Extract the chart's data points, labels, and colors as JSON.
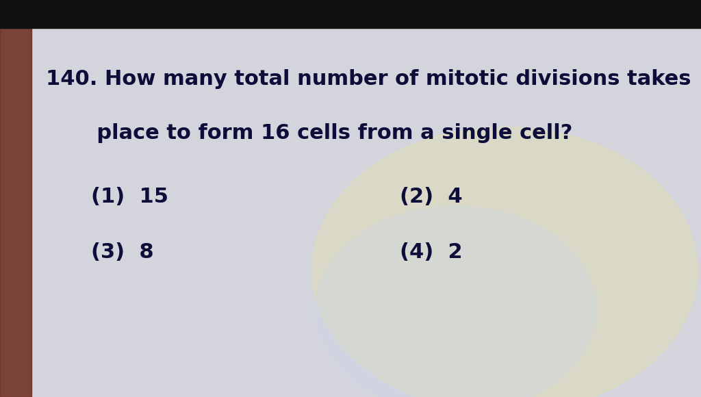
{
  "question_line1": "140. How many total number of mitotic divisions takes",
  "question_line2": "       place to form 16 cells from a single cell?",
  "option1": "(1)  15",
  "option2": "(2)  4",
  "option3": "(3)  8",
  "option4": "(4)  2",
  "bg_color_main": "#d4d4dc",
  "text_color": "#0d0d3a",
  "font_size_question": 22,
  "font_size_options": 22,
  "figsize": [
    10.24,
    5.8
  ],
  "dpi": 100
}
